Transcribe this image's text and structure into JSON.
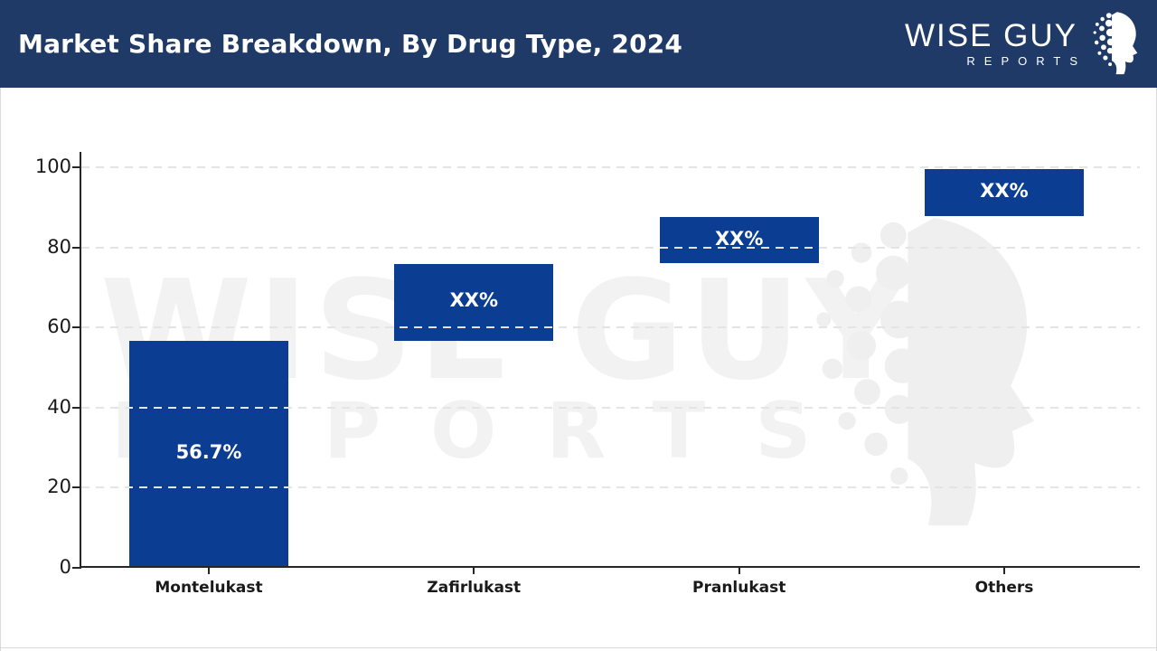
{
  "header": {
    "title": "Market Share Breakdown, By Drug Type, 2024",
    "bg_color": "#1f3a66",
    "logo": {
      "line1": "WISE GUY",
      "line2": "REPORTS"
    }
  },
  "watermark": {
    "line1": "WISE GUY",
    "line2": "REPORTS"
  },
  "chart_data": {
    "type": "bar",
    "subtype": "waterfall",
    "title": "Market Share Breakdown, By Drug Type, 2024",
    "categories": [
      "Montelukast",
      "Zafirlukast",
      "Pranlukast",
      "Others"
    ],
    "segments": [
      {
        "category": "Montelukast",
        "start": 0,
        "end": 56.7,
        "label": "56.7%"
      },
      {
        "category": "Zafirlukast",
        "start": 56.7,
        "end": 75.9,
        "label": "XX%"
      },
      {
        "category": "Pranlukast",
        "start": 76.0,
        "end": 87.6,
        "label": "XX%"
      },
      {
        "category": "Others",
        "start": 87.8,
        "end": 99.5,
        "label": "XX%"
      }
    ],
    "xlabel": "",
    "ylabel": "",
    "ylim": [
      0,
      104
    ],
    "yticks": [
      0,
      20,
      40,
      60,
      80,
      100
    ],
    "grid": "dashed horizontal, light gray, drawn over bars",
    "bar_color": "#0b3e92",
    "value_label_color": "#ffffff",
    "axis_color": "#262626",
    "legend": "none"
  }
}
